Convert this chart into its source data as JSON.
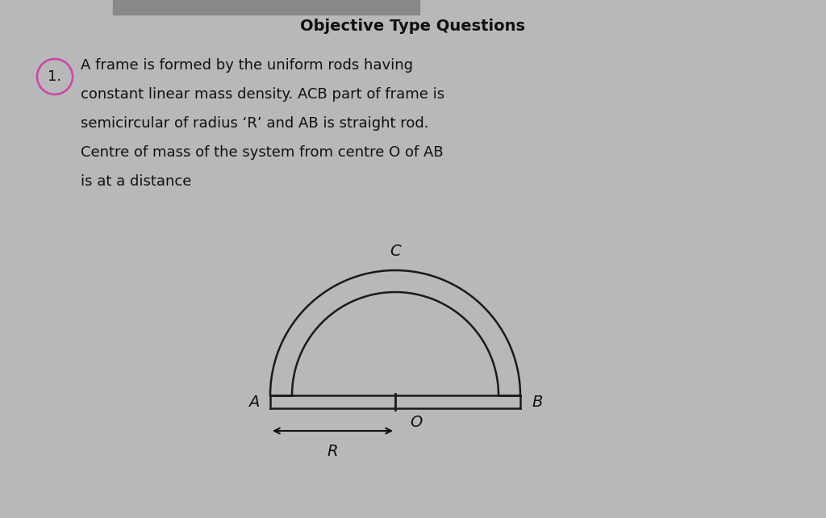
{
  "bg_color": "#b8b8b8",
  "top_bar_color": "#888888",
  "title": "Objective Type Questions",
  "title_fontsize": 14,
  "question_number": "1.",
  "circle_color": "#cc44aa",
  "question_text_line1": "A frame is formed by the uniform rods having",
  "question_text_line2": "constant linear mass density. ACB part of frame is",
  "question_text_line3": "semicircular of radius ‘R’ and AB is straight rod.",
  "question_text_line4": "Centre of mass of the system from centre O of AB",
  "question_text_line5": "is at a distance",
  "text_fontsize": 13,
  "label_C": "C",
  "label_A": "A",
  "label_B": "B",
  "label_O": "O",
  "label_R": "R",
  "diagram_color": "#1a1a1a"
}
